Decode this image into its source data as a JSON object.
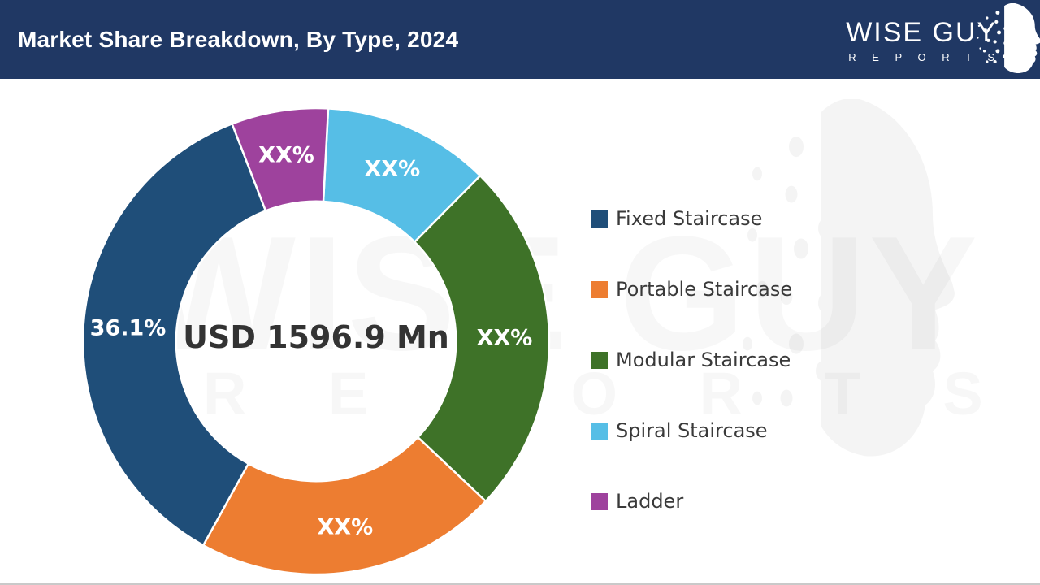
{
  "header": {
    "title": "Market Share Breakdown, By Type, 2024",
    "bg_color": "#203864",
    "logo": {
      "line1": "WISE GUY",
      "line2": "R E P O R T S"
    }
  },
  "watermark": {
    "line1": "WISE GUY",
    "line2": "R E P O R T S"
  },
  "chart_data": {
    "type": "pie",
    "subtype": "donut",
    "title": "Market Share Breakdown, By Type, 2024",
    "center_label": "USD 1596.9 Mn",
    "units": "percent share",
    "start_angle_clockwise_from_top_deg": 3,
    "donut_hole_ratio": 0.6,
    "legend_position": "right",
    "slices": [
      {
        "label": "Spiral Staircase",
        "value": 11.6,
        "display": "XX%",
        "color": "#56BEE6"
      },
      {
        "label": "Modular Staircase",
        "value": 24.6,
        "display": "XX%",
        "color": "#3E7228"
      },
      {
        "label": "Portable Staircase",
        "value": 21.0,
        "display": "XX%",
        "color": "#ED7D31"
      },
      {
        "label": "Fixed Staircase",
        "value": 36.1,
        "display": "36.1%",
        "color": "#1F4E79"
      },
      {
        "label": "Ladder",
        "value": 6.7,
        "display": "XX%",
        "color": "#9E429D"
      }
    ]
  },
  "legend": {
    "items": [
      {
        "label": "Fixed Staircase",
        "color": "#1F4E79"
      },
      {
        "label": "Portable Staircase",
        "color": "#ED7D31"
      },
      {
        "label": "Modular Staircase",
        "color": "#3E7228"
      },
      {
        "label": "Spiral Staircase",
        "color": "#56BEE6"
      },
      {
        "label": "Ladder",
        "color": "#9E429D"
      }
    ]
  }
}
